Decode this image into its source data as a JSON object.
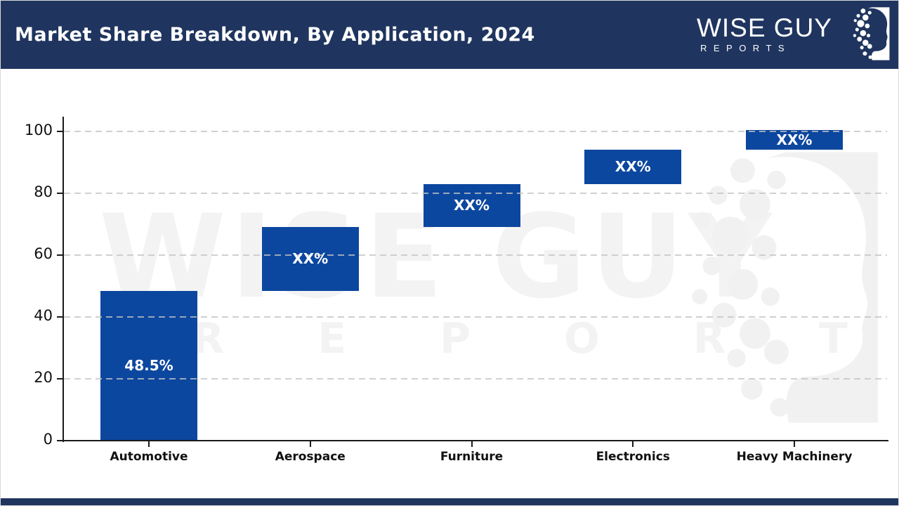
{
  "header": {
    "title": "Market Share Breakdown, By Application, 2024",
    "logo": {
      "line1": "WISE GUY",
      "line2": "REPORTS"
    }
  },
  "watermark": {
    "line1": "WISE GUY",
    "line2": "R E P O R T S"
  },
  "colors": {
    "header_navy": "#1f355f",
    "bar_blue": "#0c479f",
    "grid_gray": "#c3c3c3",
    "axis_black": "#1a1a1a",
    "watermark_gray": "#f3f3f3",
    "label_white": "#ffffff"
  },
  "chart_data": {
    "type": "bar",
    "subtype": "waterfall-floating-segments",
    "title": "Market Share Breakdown, By Application, 2024",
    "xlabel": "",
    "ylabel": "",
    "ylim": [
      0,
      100
    ],
    "yticks": [
      0,
      20,
      40,
      60,
      80,
      100
    ],
    "grid": "horizontal-dashed-over-bars",
    "legend": "none",
    "bar_color": "#0c479f",
    "categories": [
      "Automotive",
      "Aerospace",
      "Furniture",
      "Electronics",
      "Heavy Machinery"
    ],
    "segments": [
      {
        "category": "Automotive",
        "start": 0,
        "end": 48.5,
        "label": "48.5%"
      },
      {
        "category": "Aerospace",
        "start": 48.5,
        "end": 69,
        "label": "XX%"
      },
      {
        "category": "Furniture",
        "start": 69,
        "end": 83,
        "label": "XX%"
      },
      {
        "category": "Electronics",
        "start": 83,
        "end": 94,
        "label": "XX%"
      },
      {
        "category": "Heavy Machinery",
        "start": 94,
        "end": 100.4,
        "label": "XX%"
      }
    ]
  }
}
